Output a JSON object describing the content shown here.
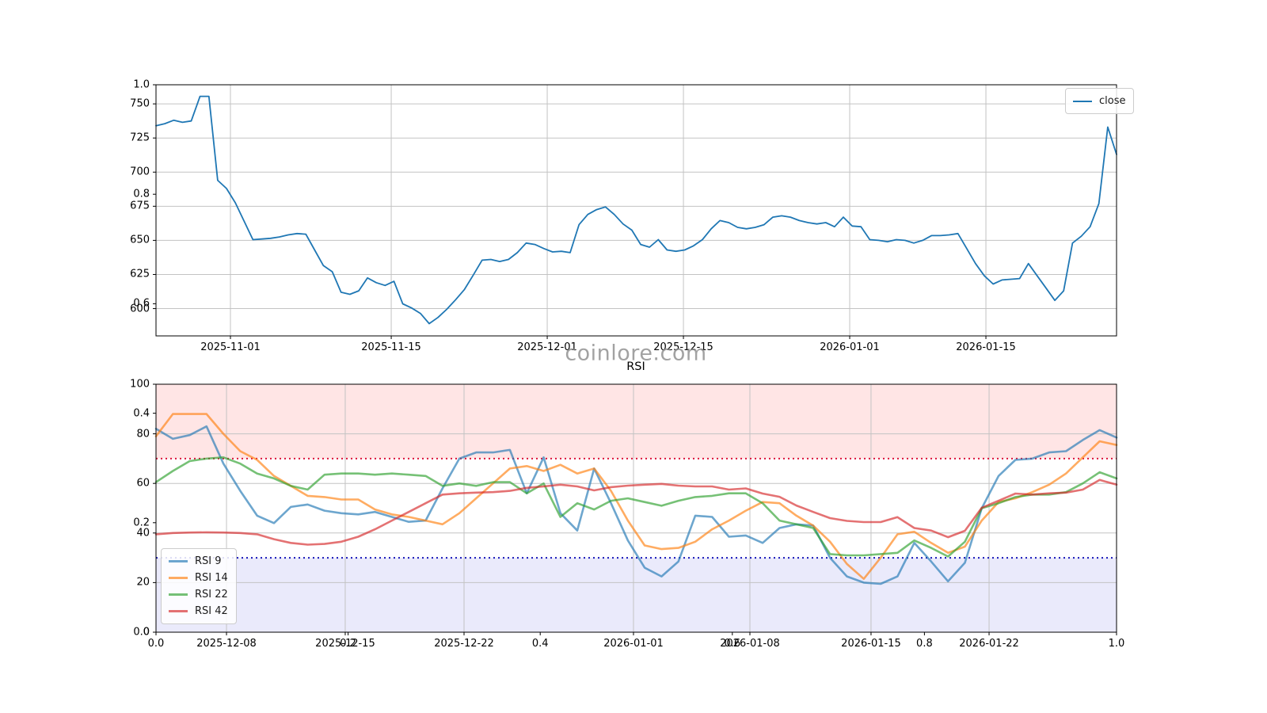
{
  "watermark": "coinlore.com",
  "colors": {
    "close_line": "#1f77b4",
    "rsi9": "rgba(31,119,180,0.65)",
    "rsi14": "rgba(255,127,14,0.65)",
    "rsi22": "rgba(44,160,44,0.65)",
    "rsi42": "rgba(214,39,40,0.65)",
    "overbought_band": "rgba(255,70,70,0.14)",
    "oversold_band": "rgba(95,95,225,0.13)",
    "overbought_line": "#dc143c",
    "oversold_line": "#1414b8",
    "grid": "#c3c3c3",
    "spine": "#000000"
  },
  "chart_data": [
    {
      "type": "line",
      "name": "price",
      "title": "",
      "xlabel": "",
      "ylabel": "",
      "ylim": [
        580,
        764
      ],
      "grid": true,
      "legend_position": "upper right",
      "yticks": [
        {
          "label": "750",
          "v": 750
        },
        {
          "label": "725",
          "v": 725
        },
        {
          "label": "700",
          "v": 700
        },
        {
          "label": "675",
          "v": 675
        },
        {
          "label": "650",
          "v": 650
        },
        {
          "label": "625",
          "v": 625
        },
        {
          "label": "600",
          "v": 600
        }
      ],
      "xticks": [
        {
          "label": "2025-11-01",
          "pos": 0.0775
        },
        {
          "label": "2025-11-15",
          "pos": 0.2449
        },
        {
          "label": "2025-12-01",
          "pos": 0.4073
        },
        {
          "label": "2025-12-15",
          "pos": 0.5491
        },
        {
          "label": "2026-01-01",
          "pos": 0.7222
        },
        {
          "label": "2026-01-15",
          "pos": 0.864
        }
      ],
      "series": [
        {
          "name": "close",
          "color_key": "close_line",
          "width": 1.8,
          "values": [
            734,
            735.5,
            738,
            736.5,
            737.5,
            755.5,
            755.5,
            694,
            688,
            677.5,
            664,
            650.5,
            651,
            651.5,
            652.5,
            654,
            655,
            654.5,
            643,
            631.5,
            627,
            612,
            610.5,
            613,
            622.5,
            619,
            617,
            620,
            603.5,
            600.5,
            596.5,
            589,
            593.5,
            599.5,
            606.5,
            614,
            624.5,
            635.5,
            636,
            634.5,
            636,
            641,
            648,
            647,
            644,
            641.5,
            642,
            641,
            661.5,
            669,
            672.5,
            674.5,
            669,
            662,
            657.5,
            647,
            645,
            650.5,
            643,
            642,
            643,
            646,
            650.5,
            658.5,
            664.5,
            663,
            659.5,
            658.5,
            659.5,
            661.5,
            667,
            668,
            667,
            664.5,
            663,
            662,
            663,
            660,
            667,
            660.5,
            660,
            650.5,
            650,
            649,
            650.5,
            650,
            648,
            650,
            653.5,
            653.5,
            654,
            655,
            644,
            633,
            624,
            618,
            621,
            621.5,
            622,
            633,
            624,
            615,
            606,
            613,
            648,
            653,
            660,
            677,
            733,
            713
          ]
        }
      ]
    },
    {
      "type": "line",
      "name": "rsi",
      "title": "RSI",
      "xlabel": "",
      "ylabel": "",
      "ylim": [
        0,
        100
      ],
      "grid": true,
      "legend_position": "lower left",
      "overbought_level": 70,
      "oversold_level": 30,
      "yticks": [
        {
          "label": "100",
          "v": 100
        },
        {
          "label": "80",
          "v": 80
        },
        {
          "label": "60",
          "v": 60
        },
        {
          "label": "40",
          "v": 40
        },
        {
          "label": "20",
          "v": 20
        },
        {
          "label": "0",
          "v": 0
        }
      ],
      "xticks": [
        {
          "label": "2025-12-08",
          "pos": 0.0734
        },
        {
          "label": "2025-12-15",
          "pos": 0.197
        },
        {
          "label": "2025-12-22",
          "pos": 0.3207
        },
        {
          "label": "2026-01-01",
          "pos": 0.4971
        },
        {
          "label": "2026-01-08",
          "pos": 0.6183
        },
        {
          "label": "2026-01-15",
          "pos": 0.7444
        },
        {
          "label": "2026-01-22",
          "pos": 0.8673
        }
      ],
      "series": [
        {
          "name": "RSI 9",
          "color_key": "rsi9",
          "width": 2.6,
          "values": [
            82,
            78,
            79.5,
            83,
            68,
            57,
            47,
            44,
            50.5,
            51.5,
            49,
            48,
            47.5,
            48.5,
            46.5,
            44.5,
            45,
            58,
            70,
            72.5,
            72.5,
            73.5,
            56,
            70.5,
            48,
            41,
            66,
            52,
            37,
            26,
            22.5,
            28.5,
            47,
            46.5,
            38.5,
            39,
            36,
            42,
            43.5,
            43,
            30,
            22.5,
            20,
            19.5,
            22.5,
            36,
            28.5,
            20.5,
            28,
            50,
            63,
            69.5,
            70,
            72.5,
            73,
            77.5,
            81.5,
            78.5
          ]
        },
        {
          "name": "RSI 14",
          "color_key": "rsi14",
          "width": 2.6,
          "values": [
            79,
            88,
            88,
            88,
            80,
            73,
            69.5,
            63,
            59,
            55,
            54.5,
            53.5,
            53.5,
            49.5,
            47.5,
            46.5,
            45,
            43.5,
            48,
            54,
            60,
            66,
            67,
            65,
            67.5,
            64,
            66,
            57,
            45,
            35,
            33.5,
            34,
            36.5,
            41.5,
            45,
            49,
            52.5,
            52,
            47,
            43,
            36.5,
            27.5,
            21.5,
            30,
            39.5,
            40.5,
            36,
            32,
            34.5,
            45,
            52.5,
            54,
            56.5,
            59.5,
            64,
            70.5,
            77,
            75.5
          ]
        },
        {
          "name": "RSI 22",
          "color_key": "rsi22",
          "width": 2.6,
          "values": [
            60.5,
            65,
            69,
            70,
            70.5,
            68,
            64,
            62,
            59,
            57.5,
            63.5,
            64,
            64,
            63.5,
            64,
            63.5,
            63,
            59,
            60,
            59,
            60.5,
            60.5,
            56,
            60,
            46.5,
            52,
            49.5,
            53,
            54,
            52.5,
            51,
            53,
            54.5,
            55,
            56,
            56,
            52,
            45,
            43.5,
            42,
            31.5,
            31,
            31,
            31.5,
            32,
            37,
            34,
            30.5,
            36.5,
            50,
            52,
            54.5,
            55.5,
            55.5,
            56.5,
            60,
            64.5,
            62
          ]
        },
        {
          "name": "RSI 42",
          "color_key": "rsi42",
          "width": 2.6,
          "values": [
            39.5,
            40,
            40.2,
            40.3,
            40.2,
            40,
            39.5,
            37.5,
            36,
            35.3,
            35.6,
            36.5,
            38.5,
            41.5,
            45,
            48.5,
            52,
            55.5,
            56,
            56.3,
            56.5,
            57,
            58.2,
            58.8,
            59.5,
            58.8,
            57.2,
            58.5,
            59.1,
            59.5,
            59.8,
            59.1,
            58.8,
            58.8,
            57.5,
            58,
            55.9,
            54.6,
            51.1,
            48.5,
            46,
            44.9,
            44.4,
            44.4,
            46.4,
            42,
            41,
            38.3,
            40.9,
            50.2,
            53,
            55.9,
            55.5,
            56,
            56.3,
            57.5,
            61.4,
            59.5
          ]
        }
      ]
    }
  ],
  "overlay_axis": {
    "yticks": [
      "1.0",
      "0.8",
      "0.6",
      "0.4",
      "0.2",
      "0.0"
    ],
    "xticks": [
      "0.0",
      "0.2",
      "0.4",
      "0.6",
      "0.8",
      "1.0"
    ]
  },
  "legend_top": {
    "label": "close"
  },
  "legend_bottom": {
    "labels": [
      "RSI 9",
      "RSI 14",
      "RSI 22",
      "RSI 42"
    ]
  }
}
